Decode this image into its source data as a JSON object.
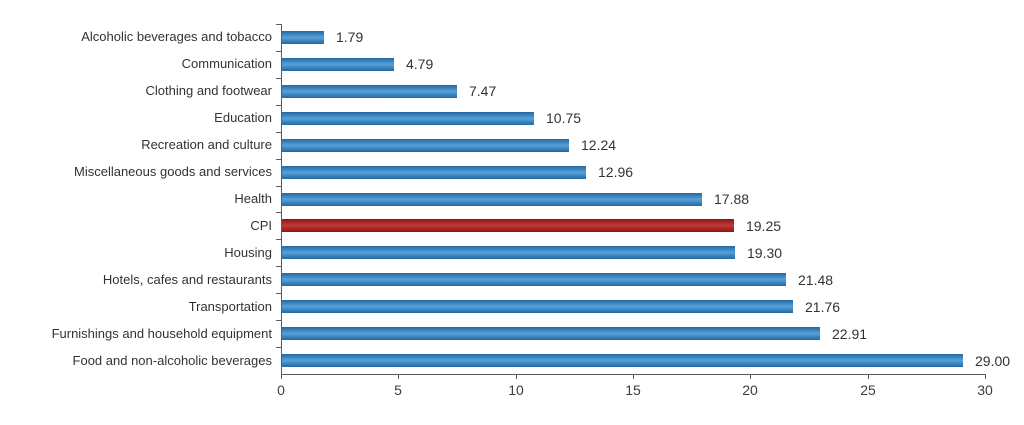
{
  "chart_data": {
    "type": "bar",
    "orientation": "horizontal",
    "title": "",
    "xlabel": "",
    "ylabel": "",
    "grid": false,
    "legend": false,
    "categories": [
      "Alcoholic beverages and tobacco",
      "Communication",
      "Clothing and footwear",
      "Education",
      "Recreation and culture",
      "Miscellaneous goods and services",
      "Health",
      "CPI",
      "Housing",
      "Hotels, cafes and restaurants",
      "Transportation",
      "Furnishings and household equipment",
      "Food and non-alcoholic beverages"
    ],
    "values": [
      1.79,
      4.79,
      7.47,
      10.75,
      12.24,
      12.96,
      17.88,
      19.25,
      19.3,
      21.48,
      21.76,
      22.91,
      29.0
    ],
    "value_labels": [
      "1.79",
      "4.79",
      "7.47",
      "10.75",
      "12.24",
      "12.96",
      "17.88",
      "19.25",
      "19.30",
      "21.48",
      "21.76",
      "22.91",
      "29.00"
    ],
    "highlight_category": "CPI",
    "highlight_index": 7,
    "bar_color": "#2e78b5",
    "highlight_color": "#a61e1e",
    "axis_color": "#5a5a5a",
    "xlim": [
      0,
      30
    ],
    "x_ticks": [
      0,
      5,
      10,
      15,
      20,
      25,
      30
    ],
    "x_tick_labels": [
      "0",
      "5",
      "10",
      "15",
      "20",
      "25",
      "30"
    ]
  }
}
